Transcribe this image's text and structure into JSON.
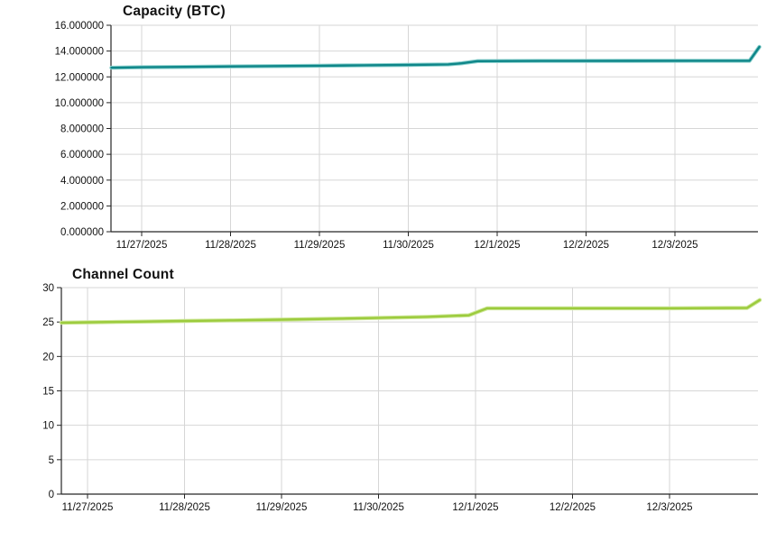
{
  "panel": {
    "background_color": "#ffffff",
    "grid_color": "#d6d6d6",
    "axis_color": "#262626",
    "text_color": "#111111"
  },
  "chart_data": [
    {
      "type": "line",
      "title": "Capacity (BTC)",
      "xlabel": "",
      "ylabel": "",
      "ylim": [
        0,
        16
      ],
      "x_domain_days": [
        -0.34,
        6.95
      ],
      "grid": true,
      "legend": "none",
      "x_ticks": [
        "11/27/2025",
        "11/28/2025",
        "11/29/2025",
        "11/30/2025",
        "12/1/2025",
        "12/2/2025",
        "12/3/2025"
      ],
      "y_ticks": [
        {
          "label": "16.000000",
          "value": 16
        },
        {
          "label": "14.000000",
          "value": 14
        },
        {
          "label": "12.000000",
          "value": 12
        },
        {
          "label": "10.000000",
          "value": 10
        },
        {
          "label": "8.000000",
          "value": 8
        },
        {
          "label": "6.000000",
          "value": 6
        },
        {
          "label": "4.000000",
          "value": 4
        },
        {
          "label": "2.000000",
          "value": 2
        },
        {
          "label": "0.000000",
          "value": 0
        }
      ],
      "series": [
        {
          "name": "capacity-btc",
          "color": "#0E8689",
          "halo_color": "#8AD0CD",
          "points": [
            [
              -0.34,
              12.71
            ],
            [
              0,
              12.745
            ],
            [
              0.5,
              12.775
            ],
            [
              1,
              12.805
            ],
            [
              1.5,
              12.835
            ],
            [
              2,
              12.865
            ],
            [
              2.5,
              12.895
            ],
            [
              3,
              12.925
            ],
            [
              3.45,
              12.965
            ],
            [
              3.6,
              13.05
            ],
            [
              3.78,
              13.22
            ],
            [
              4.5,
              13.23
            ],
            [
              5.5,
              13.24
            ],
            [
              6.3,
              13.25
            ],
            [
              6.84,
              13.25
            ],
            [
              6.95,
              14.32
            ]
          ]
        }
      ]
    },
    {
      "type": "line",
      "title": "Channel Count",
      "xlabel": "",
      "ylabel": "",
      "ylim": [
        0,
        30
      ],
      "x_domain_days": [
        -0.27,
        6.93
      ],
      "grid": true,
      "legend": "none",
      "x_ticks": [
        "11/27/2025",
        "11/28/2025",
        "11/29/2025",
        "11/30/2025",
        "12/1/2025",
        "12/2/2025",
        "12/3/2025"
      ],
      "y_ticks": [
        {
          "label": "30",
          "value": 30
        },
        {
          "label": "25",
          "value": 25
        },
        {
          "label": "20",
          "value": 20
        },
        {
          "label": "15",
          "value": 15
        },
        {
          "label": "10",
          "value": 10
        },
        {
          "label": "5",
          "value": 5
        },
        {
          "label": "0",
          "value": 0
        }
      ],
      "series": [
        {
          "name": "channel-count",
          "color": "#9CCB3D",
          "halo_color": "#CDE797",
          "points": [
            [
              -0.27,
              24.9
            ],
            [
              0,
              24.95
            ],
            [
              0.5,
              25.05
            ],
            [
              1,
              25.15
            ],
            [
              1.5,
              25.25
            ],
            [
              2,
              25.35
            ],
            [
              2.5,
              25.47
            ],
            [
              3,
              25.6
            ],
            [
              3.5,
              25.75
            ],
            [
              3.93,
              25.98
            ],
            [
              4.12,
              27.0
            ],
            [
              5,
              27.0
            ],
            [
              6,
              27.0
            ],
            [
              6.8,
              27.05
            ],
            [
              6.93,
              28.2
            ]
          ]
        }
      ]
    }
  ]
}
